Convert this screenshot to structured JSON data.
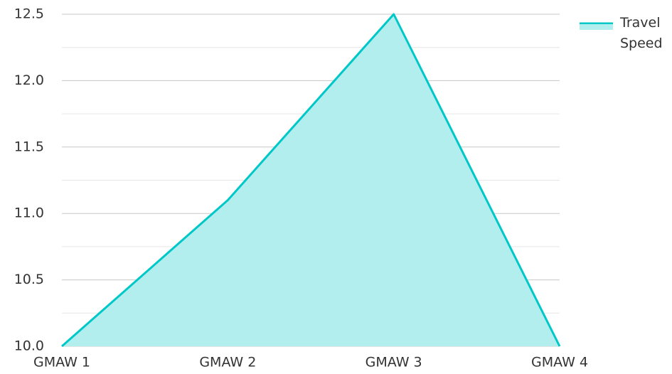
{
  "chart_data": {
    "type": "area",
    "categories": [
      "GMAW 1",
      "GMAW 2",
      "GMAW 3",
      "GMAW 4"
    ],
    "series": [
      {
        "name": "Travel Speed",
        "color": "#00c8c8",
        "fill": "#b3eeee",
        "values": [
          10.0,
          11.1,
          12.5,
          10.0
        ]
      }
    ],
    "ylim": [
      10,
      12.5
    ],
    "yticks": [
      {
        "value": 10,
        "label": "10.0"
      },
      10.5,
      {
        "value": 11,
        "label": "11.0"
      },
      11.5,
      {
        "value": 12,
        "label": "12.0"
      },
      12.5
    ],
    "grid": true,
    "minor_grid": true,
    "legend": "top-right"
  }
}
